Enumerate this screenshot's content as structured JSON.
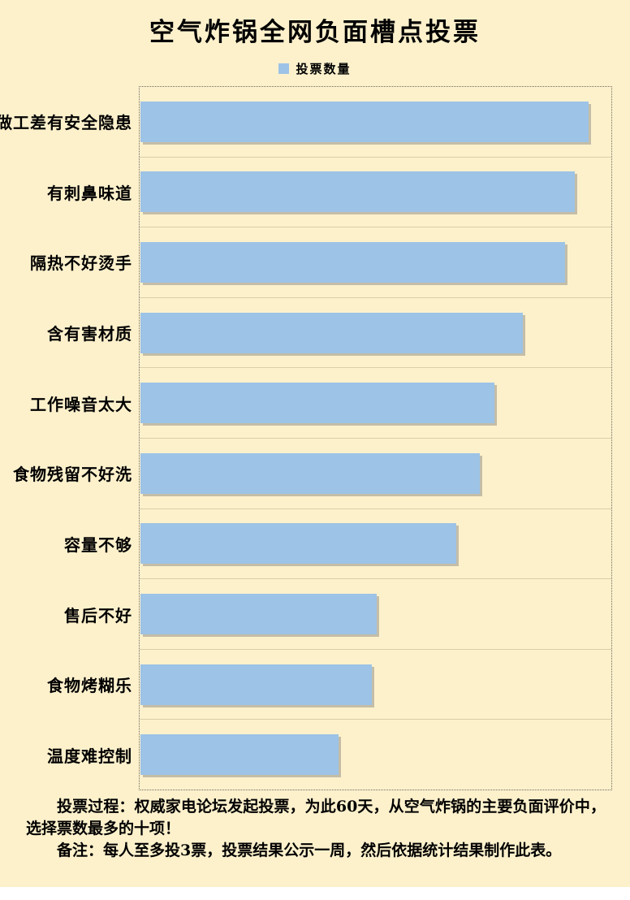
{
  "title": "空气炸锅全网负面槽点投票",
  "legend": {
    "label": "投票数量"
  },
  "chart_data": {
    "type": "bar",
    "orientation": "horizontal",
    "title": "空气炸锅全网负面槽点投票",
    "legend_entries": [
      "投票数量"
    ],
    "legend_position": "top-center",
    "categories": [
      "做工差有安全隐患",
      "有刺鼻味道",
      "隔热不好烫手",
      "含有害材质",
      "工作噪音太大",
      "食物残留不好洗",
      "容量不够",
      "售后不好",
      "食物烤糊乐",
      "温度难控制"
    ],
    "values": [
      95,
      92,
      90,
      81,
      75,
      72,
      67,
      50,
      49,
      42
    ],
    "xlim": [
      0,
      100
    ],
    "value_axis_visible": false,
    "gridlines": true,
    "bar_color": "#9DC3E6",
    "background_color": "#FDF1CC",
    "plot_border_style": "dotted"
  },
  "footer": {
    "paragraph1": "投票过程：权威家电论坛发起投票，为此60天，从空气炸锅的主要负面评价中，选择票数最多的十项！",
    "paragraph2": "备注：每人至多投3票，投票结果公示一周，然后依据统计结果制作此表。"
  },
  "colors": {
    "bar": "#9DC3E6",
    "background": "#FDF1CC",
    "text": "#000000"
  }
}
